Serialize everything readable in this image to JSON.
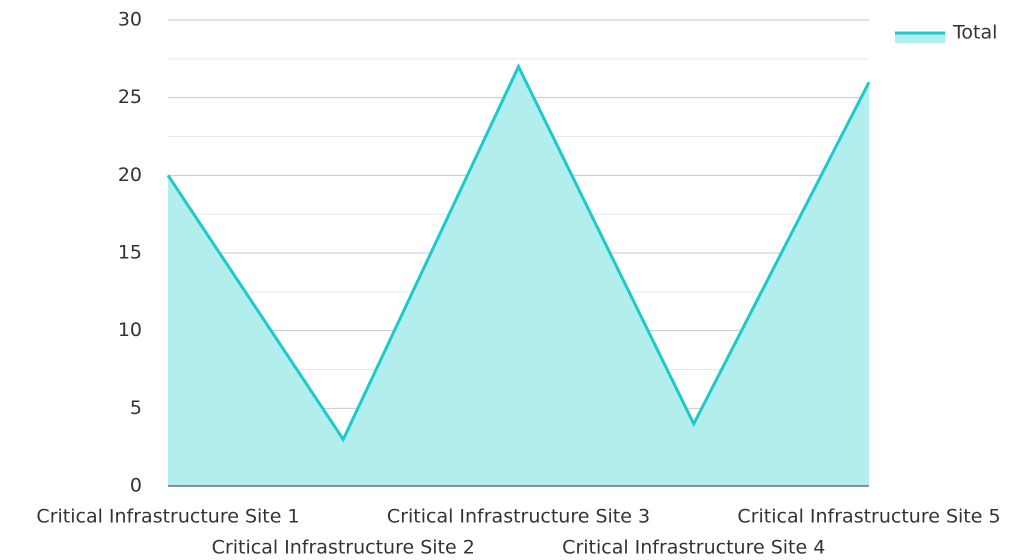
{
  "chart_data": {
    "type": "area",
    "categories": [
      "Critical Infrastructure Site 1",
      "Critical Infrastructure Site 2",
      "Critical Infrastructure Site 3",
      "Critical Infrastructure Site 4",
      "Critical Infrastructure Site 5"
    ],
    "series": [
      {
        "name": "Total",
        "color": "#1dc9c9",
        "fill": "#b3eeee",
        "values": [
          20,
          3,
          27,
          4,
          26
        ]
      }
    ],
    "ylim": [
      0,
      30
    ],
    "yticks": [
      0,
      5,
      10,
      15,
      20,
      25,
      30
    ],
    "minor_yticks": [
      2.5,
      7.5,
      12.5,
      17.5,
      22.5,
      27.5
    ],
    "grid": true,
    "legend": "top-right"
  }
}
